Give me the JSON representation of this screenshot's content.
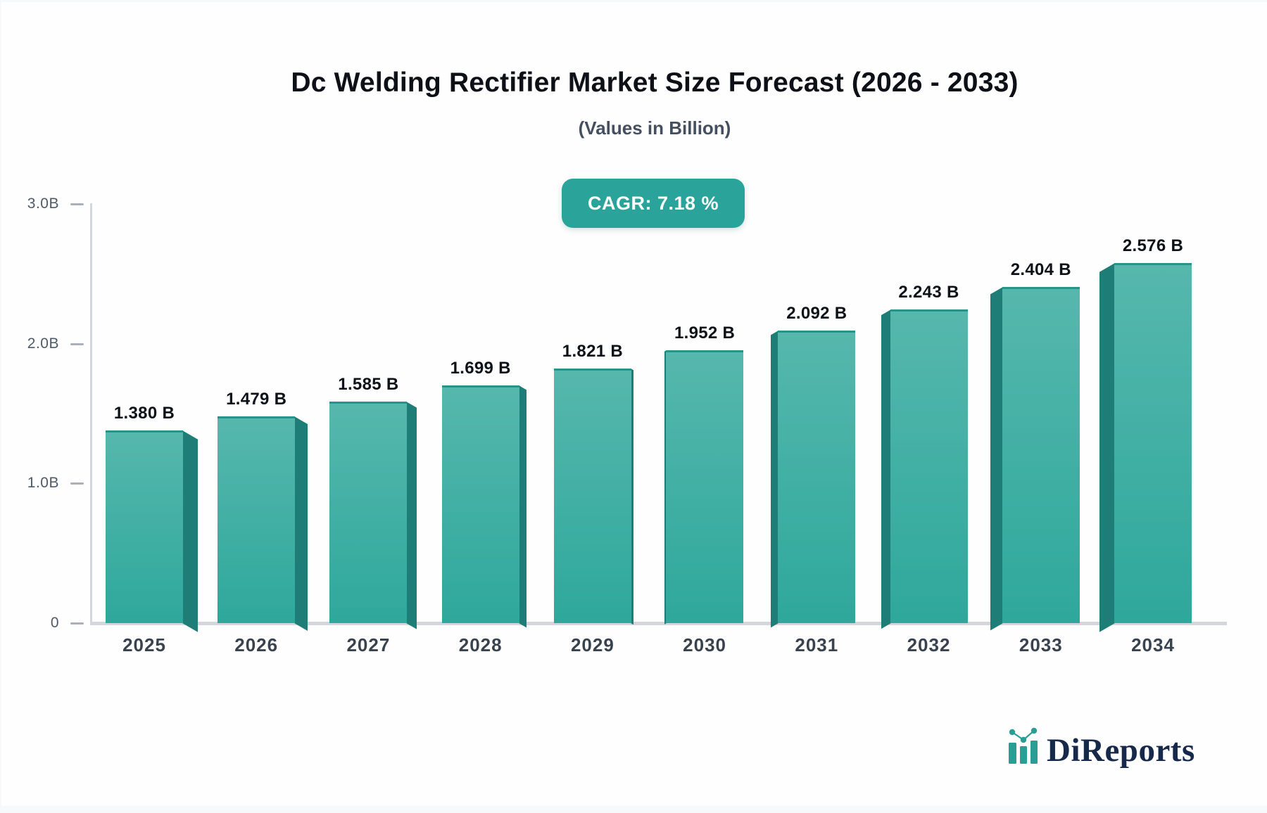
{
  "header": {
    "title": "Dc Welding Rectifier Market Size Forecast (2026 - 2033)",
    "subtitle": "(Values in Billion)",
    "badge_label": "CAGR: 7.18 %"
  },
  "chart_data": {
    "type": "bar",
    "title": "Dc Welding Rectifier Market Size Forecast (2026 - 2033)",
    "subtitle": "(Values in Billion)",
    "cagr_percent": 7.18,
    "unit": "Billion",
    "categories": [
      "2025",
      "2026",
      "2027",
      "2028",
      "2029",
      "2030",
      "2031",
      "2032",
      "2033",
      "2034"
    ],
    "values": [
      1.38,
      1.479,
      1.585,
      1.699,
      1.821,
      1.952,
      2.092,
      2.243,
      2.404,
      2.576
    ],
    "value_labels": [
      "1.380 B",
      "1.479 B",
      "1.585 B",
      "1.699 B",
      "1.821 B",
      "1.952 B",
      "2.092 B",
      "2.243 B",
      "2.404 B",
      "2.576 B"
    ],
    "xlabel": "",
    "ylabel": "",
    "ylim": [
      0,
      3
    ],
    "yticks": [
      {
        "value": 0,
        "label": "0"
      },
      {
        "value": 1,
        "label": "1.0B"
      },
      {
        "value": 2,
        "label": "2.0B"
      },
      {
        "value": 3,
        "label": "3.0B"
      }
    ],
    "grid": false,
    "legend": null,
    "style_3d": true,
    "bar_style": {
      "face_top": "#56b7ad",
      "face_bottom": "#2ea89b",
      "side": "#1e7d76",
      "top_edge": "#27948b"
    }
  },
  "logo": {
    "text": "DiReports",
    "accent": "#2a9d95",
    "text_color": "#17294a"
  },
  "colors": {
    "page_bg": "#f7f8fa",
    "card_bg": "#fefefe",
    "axis": "#d3d6db",
    "tick": "#a9b0ba",
    "y_label": "#4e5a68",
    "x_label": "#39424f",
    "value_label": "#0d1219",
    "title": "#0d1117",
    "subtitle": "#454f5f",
    "badge_bg": "#2aa39a",
    "badge_text": "#ffffff"
  }
}
